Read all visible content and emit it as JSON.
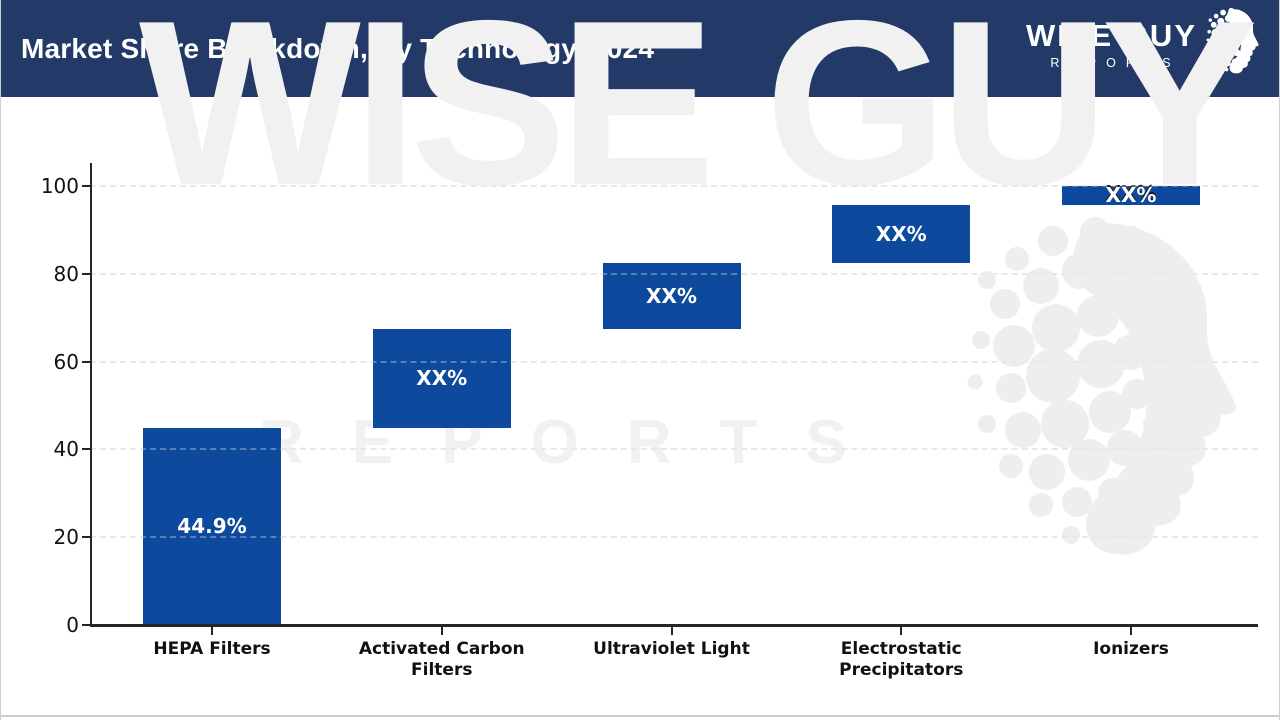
{
  "header": {
    "title": "Market Share Breakdown, By Technology, 2024",
    "logo": {
      "line1": "WISE GUY",
      "line2": "REPORTS"
    }
  },
  "watermark": {
    "line1": "WISE GUY",
    "line2": "REPORTS"
  },
  "colors": {
    "header_bg": "#233a69",
    "bar": "#0d4a9e",
    "grid": "#dedede",
    "axis": "#262626",
    "bar_label": "#ffffff",
    "tick_text": "#111111",
    "watermark": "#f1f1f1"
  },
  "chart_data": {
    "type": "bar",
    "subtype": "waterfall",
    "title": "Market Share Breakdown, By Technology, 2024",
    "categories": [
      "HEPA Filters",
      "Activated Carbon Filters",
      "Ultraviolet Light",
      "Electrostatic Precipitators",
      "Ionizers"
    ],
    "segments": [
      {
        "start": 0,
        "end": 44.9,
        "label": "44.9%"
      },
      {
        "start": 44.9,
        "end": 67.5,
        "label": "XX%"
      },
      {
        "start": 67.5,
        "end": 82.4,
        "label": "XX%"
      },
      {
        "start": 82.4,
        "end": 95.7,
        "label": "XX%"
      },
      {
        "start": 95.7,
        "end": 100,
        "label": "XX%"
      }
    ],
    "yticks": [
      0,
      20,
      40,
      60,
      80,
      100
    ],
    "ylim": [
      0,
      104
    ],
    "xlabel": "",
    "ylabel": "",
    "grid": "horizontal-dashed",
    "legend": "none",
    "bar_color": "#0d4a9e"
  }
}
